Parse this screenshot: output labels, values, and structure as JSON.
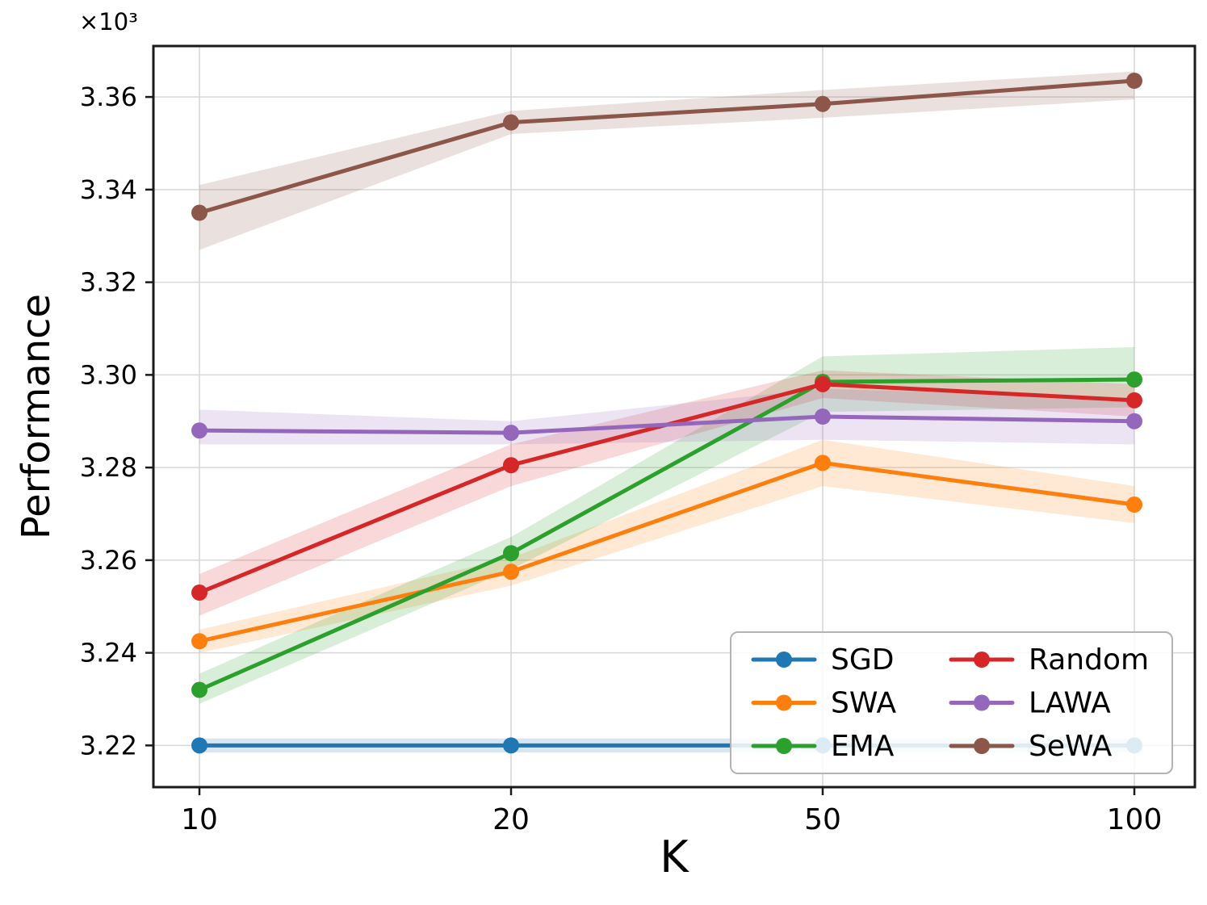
{
  "chart_data": {
    "type": "line",
    "title": "",
    "xlabel": "K",
    "ylabel": "Performance",
    "offset_text": "×10³",
    "x_categories": [
      "10",
      "20",
      "50",
      "100"
    ],
    "y_ticks": [
      "3.22",
      "3.24",
      "3.26",
      "3.28",
      "3.30",
      "3.32",
      "3.34",
      "3.36"
    ],
    "ylim": [
      3.211,
      3.371
    ],
    "grid": true,
    "legend_position": "lower right",
    "legend_columns": 2,
    "series": [
      {
        "name": "SGD",
        "color": "#1f77b4",
        "values": [
          3.22,
          3.22,
          3.22,
          3.22
        ],
        "band_lower": [
          3.2185,
          3.2185,
          3.2185,
          3.2185
        ],
        "band_upper": [
          3.2215,
          3.2215,
          3.2215,
          3.2215
        ]
      },
      {
        "name": "SWA",
        "color": "#ff7f0e",
        "values": [
          3.2425,
          3.2575,
          3.281,
          3.272
        ],
        "band_lower": [
          3.24,
          3.2545,
          3.276,
          3.268
        ],
        "band_upper": [
          3.245,
          3.2605,
          3.286,
          3.276
        ]
      },
      {
        "name": "EMA",
        "color": "#2ca02c",
        "values": [
          3.232,
          3.2615,
          3.2985,
          3.299
        ],
        "band_lower": [
          3.229,
          3.258,
          3.292,
          3.293
        ],
        "band_upper": [
          3.2355,
          3.265,
          3.304,
          3.306
        ]
      },
      {
        "name": "Random",
        "color": "#d62728",
        "values": [
          3.253,
          3.2805,
          3.298,
          3.2945
        ],
        "band_lower": [
          3.248,
          3.276,
          3.295,
          3.291
        ],
        "band_upper": [
          3.257,
          3.285,
          3.301,
          3.298
        ]
      },
      {
        "name": "LAWA",
        "color": "#9467bd",
        "values": [
          3.288,
          3.2875,
          3.291,
          3.29
        ],
        "band_lower": [
          3.285,
          3.285,
          3.286,
          3.285
        ],
        "band_upper": [
          3.2925,
          3.29,
          3.297,
          3.295
        ]
      },
      {
        "name": "SeWA",
        "color": "#8c564b",
        "values": [
          3.335,
          3.3545,
          3.3585,
          3.3635
        ],
        "band_lower": [
          3.327,
          3.352,
          3.3555,
          3.3595
        ],
        "band_upper": [
          3.341,
          3.357,
          3.3615,
          3.3655
        ]
      }
    ]
  }
}
